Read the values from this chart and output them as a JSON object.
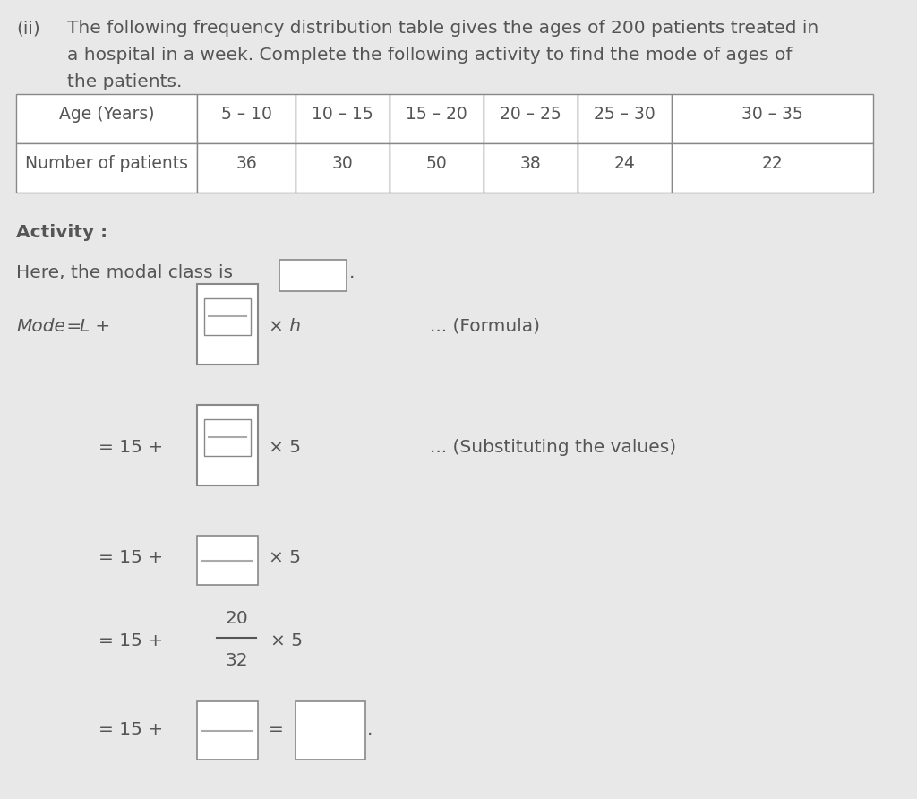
{
  "background_color": "#e8e8e8",
  "text_color": "#555555",
  "box_edge_color": "#888888",
  "table_edge_color": "#888888",
  "table_bg": "#ffffff",
  "font_size_para": 14.5,
  "font_size_table": 13.5,
  "font_size_math": 14.5,
  "table_headers": [
    "Age (Years)",
    "5 – 10",
    "10 – 15",
    "15 – 20",
    "20 – 25",
    "25 – 30",
    "30 – 35"
  ],
  "table_row": [
    "Number of patients",
    "36",
    "30",
    "50",
    "38",
    "24",
    "22"
  ],
  "para_line1": "The following frequency distribution table gives the ages of 200 patients treated in",
  "para_line2": "a hospital in a week. Complete the following activity to find the mode of ages of",
  "para_line3": "the patients.",
  "activity_label": "Activity :",
  "modal_text": "Here, the modal class is",
  "formula_comment": "... (Formula)",
  "sub_comment": "... (Substituting the values)"
}
